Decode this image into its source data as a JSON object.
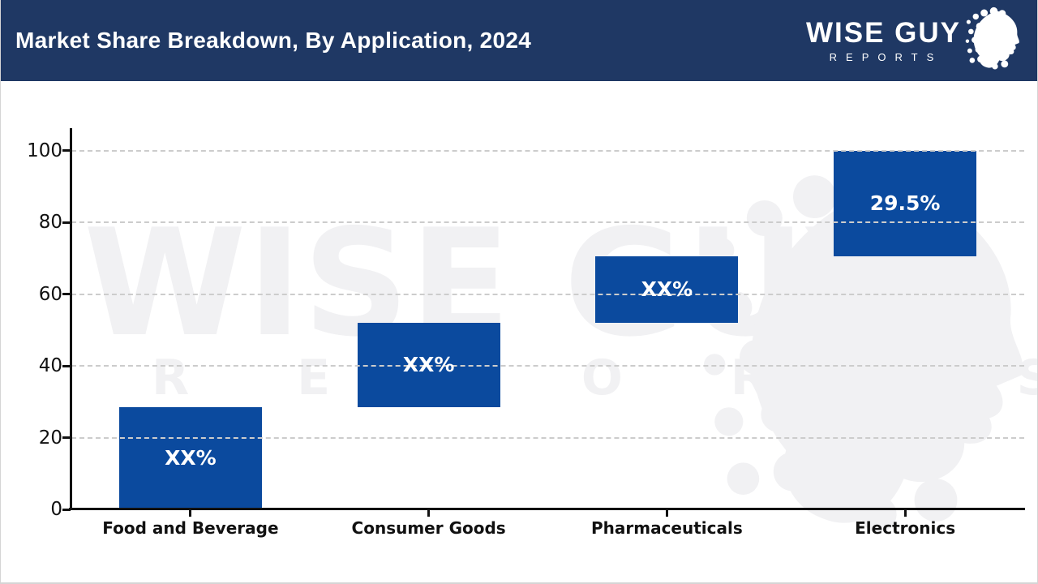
{
  "header": {
    "title": "Market Share Breakdown, By Application, 2024",
    "logo": {
      "line1": "WISE GUY",
      "line2": "REPORTS"
    }
  },
  "watermark": {
    "line1": "WISE GUY",
    "line2": "R E P O R T S"
  },
  "colors": {
    "header_bg": "#1f3864",
    "bar_blue": "#0b4a9e",
    "gridline": "#cccccc",
    "watermark_gray": "#f1f1f3",
    "axis_black": "#111111"
  },
  "chart_data": {
    "type": "bar",
    "subtype": "waterfall",
    "title": "Market Share Breakdown, By Application, 2024",
    "xlabel": "",
    "ylabel": "",
    "ylim": [
      0,
      100
    ],
    "yticks": [
      0,
      20,
      40,
      60,
      80,
      100
    ],
    "grid": "dashed-horizontal",
    "legend": "none",
    "categories": [
      "Food and Beverage",
      "Consumer Goods",
      "Pharmaceuticals",
      "Electronics"
    ],
    "segments": [
      {
        "category": "Food and Beverage",
        "start": 0,
        "end": 28.5,
        "value": 28.5,
        "label": "XX%"
      },
      {
        "category": "Consumer Goods",
        "start": 28.5,
        "end": 52,
        "value": 23.5,
        "label": "XX%"
      },
      {
        "category": "Pharmaceuticals",
        "start": 52,
        "end": 70.5,
        "value": 18.5,
        "label": "XX%"
      },
      {
        "category": "Electronics",
        "start": 70.5,
        "end": 100,
        "value": 29.5,
        "label": "29.5%"
      }
    ],
    "bar_color": "#0b4a9e"
  }
}
